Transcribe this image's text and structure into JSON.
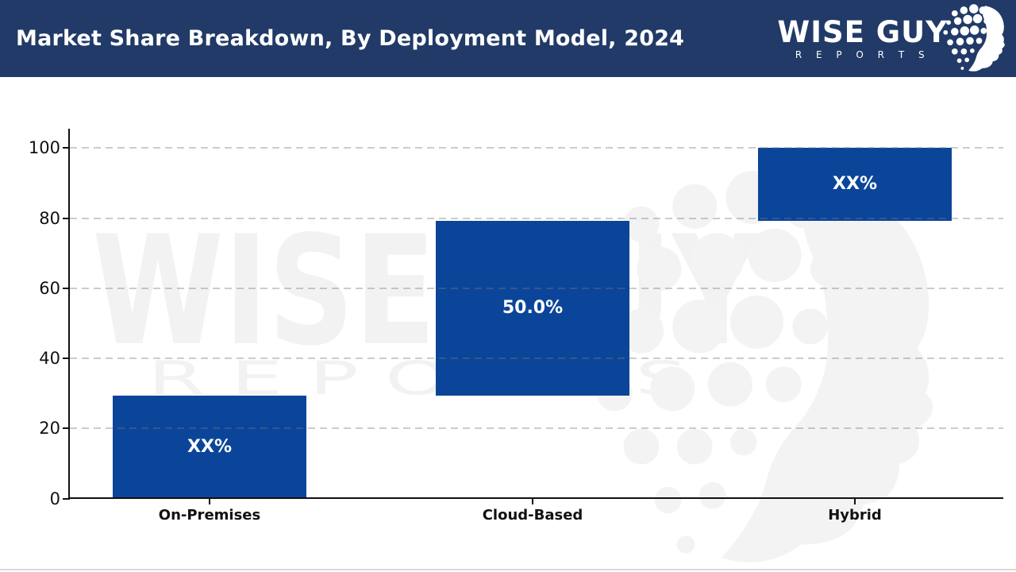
{
  "header": {
    "title": "Market Share Breakdown, By Deployment Model, 2024",
    "bg_color": "#213a67",
    "logo": {
      "name": "WISE GUY",
      "subname": "R E P O R T S"
    }
  },
  "watermark": {
    "line1": "WISE GUY",
    "line2": "R E P O R T S"
  },
  "chart_data": {
    "type": "bar",
    "subtype": "waterfall",
    "title": "Market Share Breakdown, By Deployment Model, 2024",
    "categories": [
      "On-Premises",
      "Cloud-Based",
      "Hybrid"
    ],
    "series": [
      {
        "name": "Market Share (%)",
        "segments": [
          {
            "category": "On-Premises",
            "start": 0,
            "end": 29.3,
            "label": "XX%"
          },
          {
            "category": "Cloud-Based",
            "start": 29.3,
            "end": 79.3,
            "label": "50.0%"
          },
          {
            "category": "Hybrid",
            "start": 79.3,
            "end": 100,
            "label": "XX%"
          }
        ]
      }
    ],
    "ylim": [
      0,
      105
    ],
    "yticks": [
      0,
      20,
      40,
      60,
      80,
      100
    ],
    "grid": "horizontal-dashed",
    "legend": "none",
    "bar_color": "#0b4599",
    "bar_label_color": "#ffffff"
  }
}
